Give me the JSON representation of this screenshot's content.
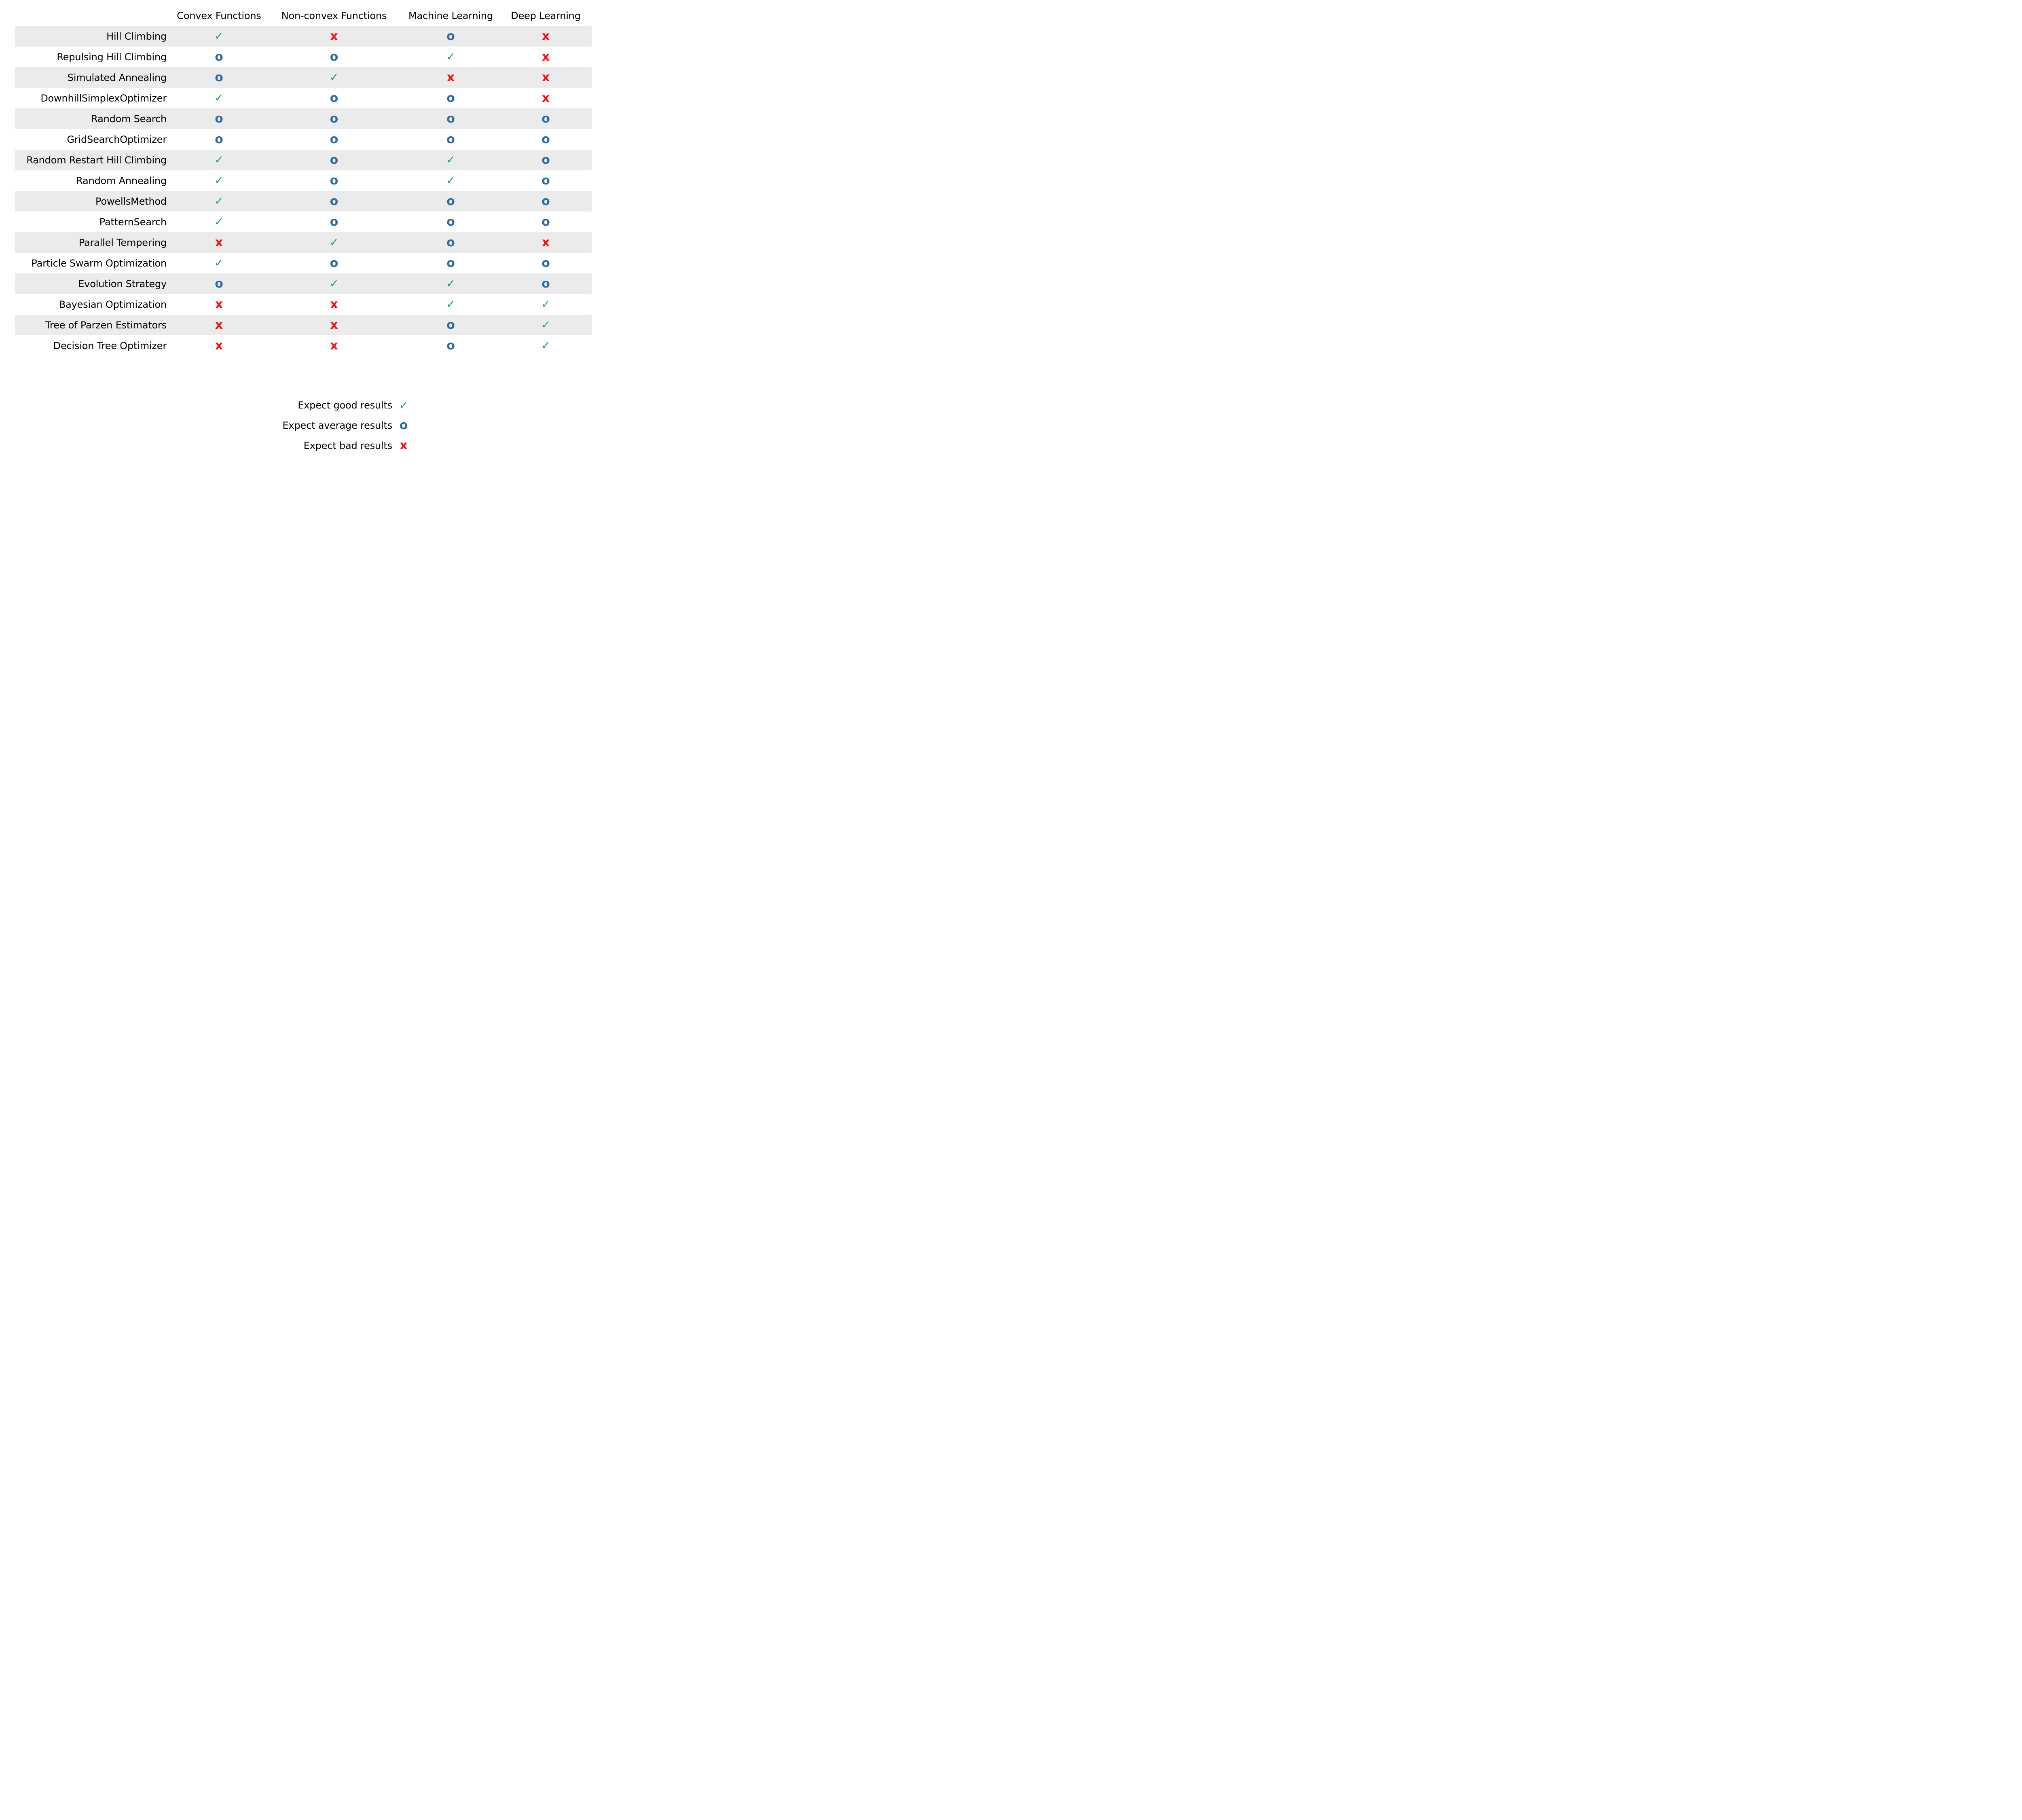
{
  "chart_data": {
    "type": "table",
    "title": "",
    "columns": [
      "Convex Functions",
      "Non-convex Functions",
      "Machine Learning",
      "Deep Learning"
    ],
    "rows": [
      {
        "label": "Hill Climbing",
        "cells": [
          "good",
          "bad",
          "average",
          "bad"
        ]
      },
      {
        "label": "Repulsing Hill Climbing",
        "cells": [
          "average",
          "average",
          "good",
          "bad"
        ]
      },
      {
        "label": "Simulated Annealing",
        "cells": [
          "average",
          "good",
          "bad",
          "bad"
        ]
      },
      {
        "label": "DownhillSimplexOptimizer",
        "cells": [
          "good",
          "average",
          "average",
          "bad"
        ]
      },
      {
        "label": "Random Search",
        "cells": [
          "average",
          "average",
          "average",
          "average"
        ]
      },
      {
        "label": "GridSearchOptimizer",
        "cells": [
          "average",
          "average",
          "average",
          "average"
        ]
      },
      {
        "label": "Random Restart Hill Climbing",
        "cells": [
          "good",
          "average",
          "good",
          "average"
        ]
      },
      {
        "label": "Random Annealing",
        "cells": [
          "good",
          "average",
          "good",
          "average"
        ]
      },
      {
        "label": "PowellsMethod",
        "cells": [
          "good",
          "average",
          "average",
          "average"
        ]
      },
      {
        "label": "PatternSearch",
        "cells": [
          "good",
          "average",
          "average",
          "average"
        ]
      },
      {
        "label": "Parallel Tempering",
        "cells": [
          "bad",
          "good",
          "average",
          "bad"
        ]
      },
      {
        "label": "Particle Swarm Optimization",
        "cells": [
          "good",
          "average",
          "average",
          "average"
        ]
      },
      {
        "label": "Evolution Strategy",
        "cells": [
          "average",
          "good",
          "good",
          "average"
        ]
      },
      {
        "label": "Bayesian Optimization",
        "cells": [
          "bad",
          "bad",
          "good",
          "good"
        ]
      },
      {
        "label": "Tree of Parzen Estimators",
        "cells": [
          "bad",
          "bad",
          "average",
          "good"
        ]
      },
      {
        "label": "Decision Tree Optimizer",
        "cells": [
          "bad",
          "bad",
          "average",
          "good"
        ]
      }
    ],
    "legend": [
      {
        "label": "Expect good results",
        "symbol": "good"
      },
      {
        "label": "Expect average results",
        "symbol": "average"
      },
      {
        "label": "Expect bad results",
        "symbol": "bad"
      }
    ],
    "symbols": {
      "good": {
        "glyph": "✓",
        "color": "#0cab44",
        "icon_name": "check-icon"
      },
      "average": {
        "glyph": "o",
        "color": "#2e6da4",
        "icon_name": "average-o-icon"
      },
      "bad": {
        "glyph": "x",
        "color": "#fc0d0d",
        "icon_name": "bad-x-icon"
      }
    },
    "layout": {
      "stripe_color": "#ebebeb",
      "background": "#ffffff",
      "text_color": "#000000",
      "striped_rows": "odd",
      "legend_position": "bottom-center",
      "grid": false
    }
  }
}
